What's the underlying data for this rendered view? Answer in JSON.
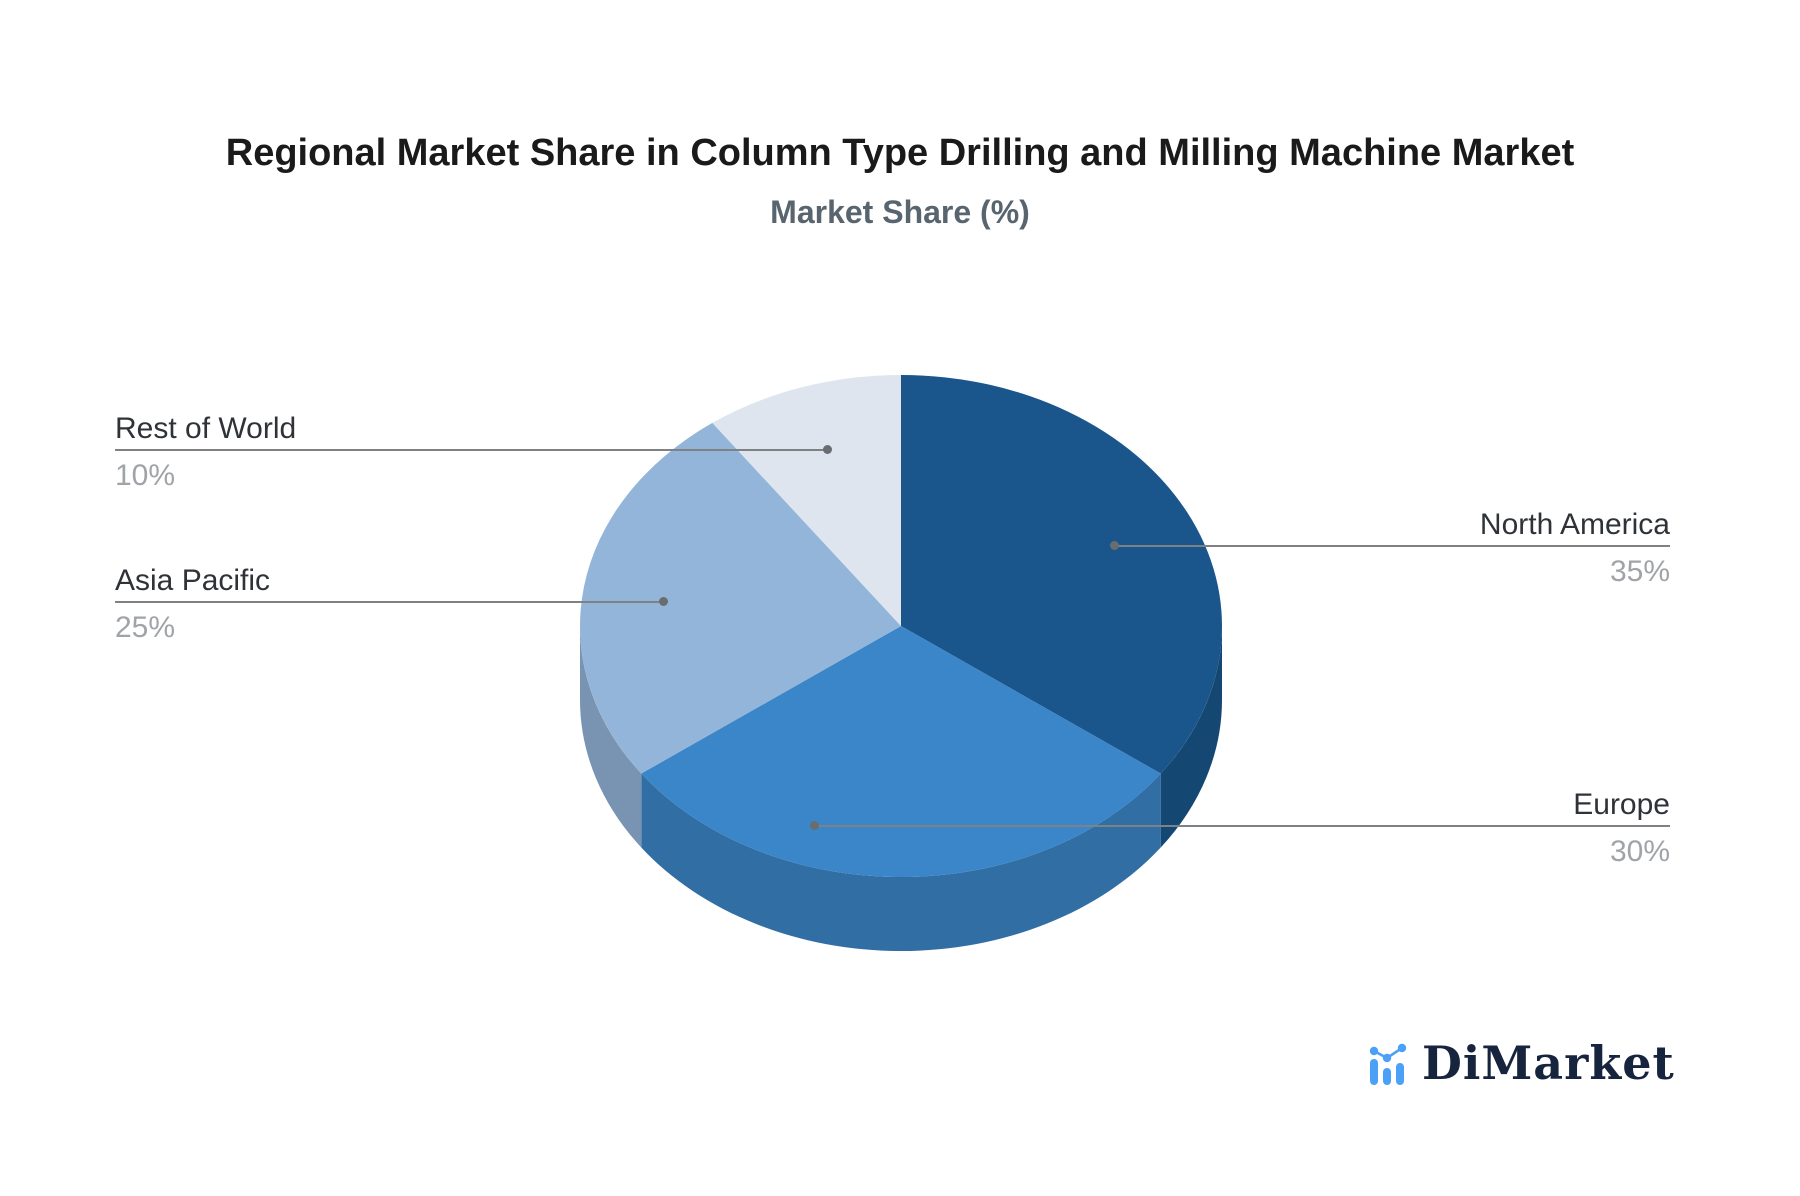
{
  "title": "Regional Market Share in Column Type Drilling and Milling Machine Market",
  "subtitle": "Market Share (%)",
  "chart_data": {
    "type": "pie",
    "style": "3d-pie",
    "title": "Regional Market Share in Column Type Drilling and Milling Machine Market",
    "subtitle": "Market Share (%)",
    "unit": "%",
    "start_angle": "12 o'clock",
    "direction": "clockwise",
    "legend_position": "none (callout labels with leader lines)",
    "slices": [
      {
        "label": "North America",
        "value": 35,
        "pct": "35%",
        "color": "#1A568C"
      },
      {
        "label": "Europe",
        "value": 30,
        "pct": "30%",
        "color": "#3A86C8"
      },
      {
        "label": "Asia Pacific",
        "value": 25,
        "pct": "25%",
        "color": "#93B5D9"
      },
      {
        "label": "Rest of World",
        "value": 10,
        "pct": "10%",
        "color": "#DFE5EF"
      }
    ],
    "colors": {
      "leader_line": "#7e8285",
      "leader_dot": "#696d70",
      "label_text": "#2f3338",
      "value_text": "#a0a3a7"
    }
  },
  "logo": {
    "text": "DiMarket",
    "icon_color": "#4AA1F7",
    "text_color": "#17243d"
  }
}
